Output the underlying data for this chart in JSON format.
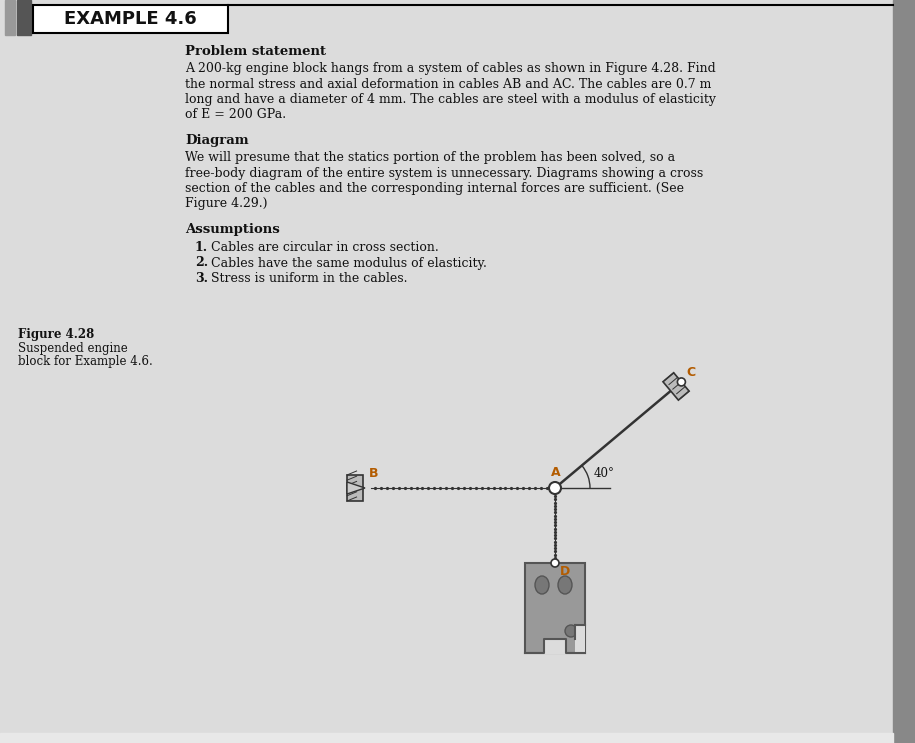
{
  "bg_color": "#dcdcdc",
  "white_color": "#ffffff",
  "header_title": "EXAMPLE 4.6",
  "section1_title": "Problem statement",
  "section1_lines": [
    "A 200-kg engine block hangs from a system of cables as shown in Figure 4.28. Find",
    "the normal stress and axial deformation in cables AB and AC. The cables are 0.7 m",
    "long and have a diameter of 4 mm. The cables are steel with a modulus of elasticity",
    "of E = 200 GPa."
  ],
  "section2_title": "Diagram",
  "section2_lines": [
    "We will presume that the statics portion of the problem has been solved, so a",
    "free-body diagram of the entire system is unnecessary. Diagrams showing a cross",
    "section of the cables and the corresponding internal forces are sufficient. (See",
    "Figure 4.29.)"
  ],
  "section3_title": "Assumptions",
  "assumptions": [
    "Cables are circular in cross section.",
    "Cables have the same modulus of elasticity.",
    "Stress is uniform in the cables."
  ],
  "figure_label": "Figure 4.28",
  "figure_caption_lines": [
    "Suspended engine",
    "block for Example 4.6."
  ],
  "label_color": "#b35c00",
  "text_color": "#111111",
  "sidebar_dark": "#555555",
  "sidebar_light": "#999999",
  "right_bar_color": "#888888",
  "cable_color": "#333333",
  "wall_face_color": "#aaaaaa",
  "block_face_color": "#999999",
  "block_edge_color": "#555555",
  "pin_color": "#ffffff"
}
